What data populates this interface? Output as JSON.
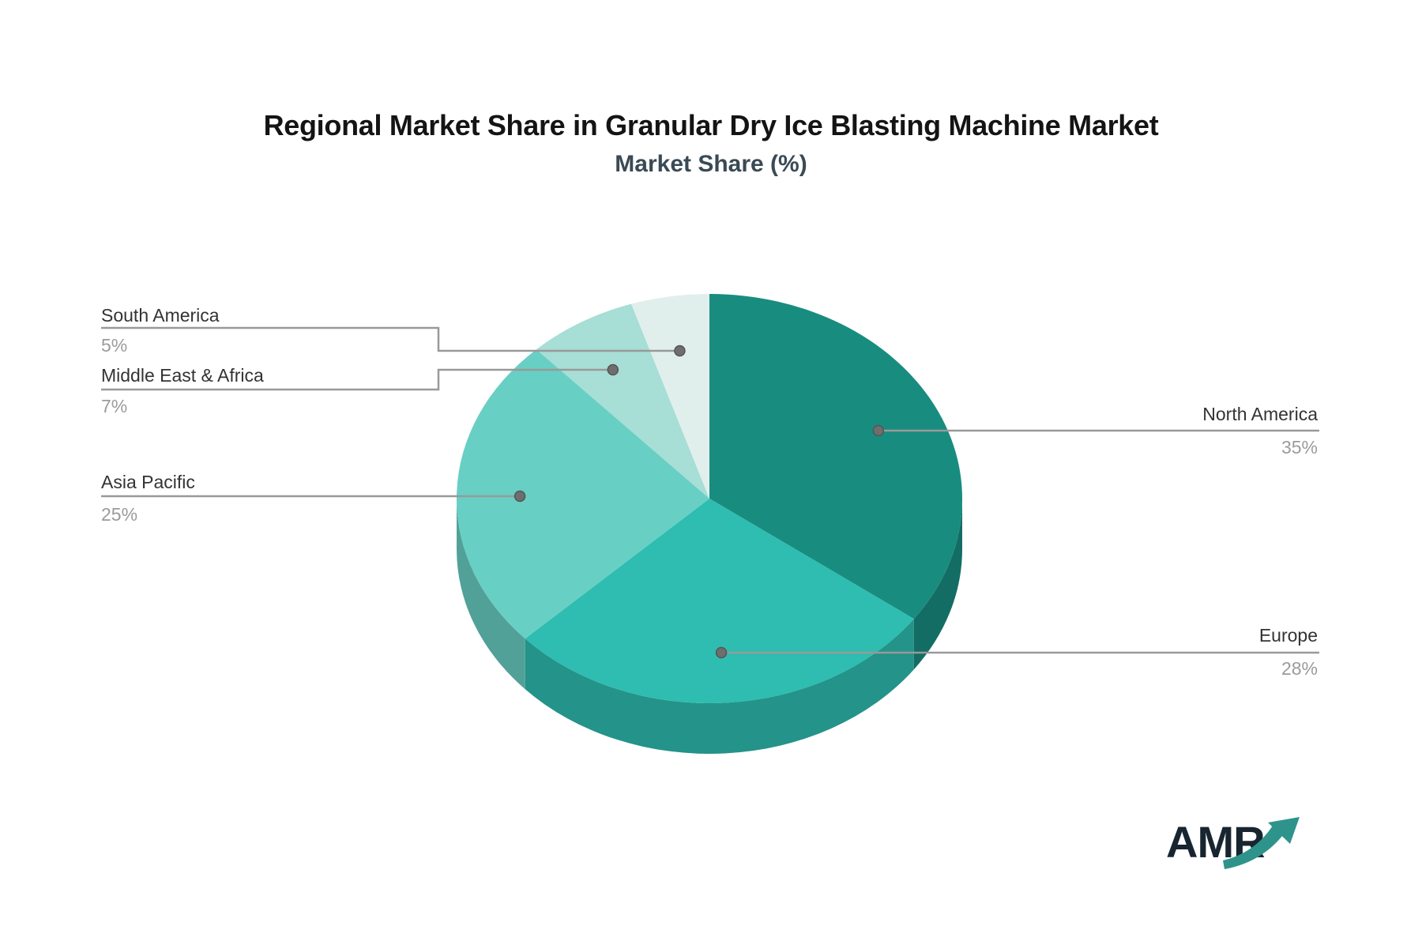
{
  "header": {
    "title": "Regional Market Share in Granular Dry Ice Blasting Machine Market",
    "subtitle": "Market Share (%)"
  },
  "logo": {
    "text": "AMR",
    "arrow_icon": "trend-up-arrow",
    "text_color": "#182531",
    "arrow_color": "#2e948b"
  },
  "chart_data": {
    "type": "pie",
    "title": "Regional Market Share in Granular Dry Ice Blasting Machine Market",
    "subtitle": "Market Share (%)",
    "unit": "%",
    "effect": "3d",
    "start_angle_deg": 0,
    "direction": "clockwise",
    "legend": "none",
    "slices": [
      {
        "label": "North America",
        "value": 35,
        "pct_label": "35%",
        "color": "#198c80",
        "label_side": "right"
      },
      {
        "label": "Europe",
        "value": 28,
        "pct_label": "28%",
        "color": "#2ebdb0",
        "label_side": "right"
      },
      {
        "label": "Asia Pacific",
        "value": 25,
        "pct_label": "25%",
        "color": "#68cfc4",
        "label_side": "left"
      },
      {
        "label": "Middle East & Africa",
        "value": 7,
        "pct_label": "7%",
        "color": "#a7ded6",
        "label_side": "left"
      },
      {
        "label": "South America",
        "value": 5,
        "pct_label": "5%",
        "color": "#e1efec",
        "label_side": "left"
      }
    ],
    "style": {
      "leader_line_color": "#999999",
      "dot_color": "#6e6e6e",
      "label_color": "#333333",
      "pct_color": "#9b9b9b",
      "title_color": "#141414",
      "subtitle_color": "#3a4a55"
    }
  }
}
